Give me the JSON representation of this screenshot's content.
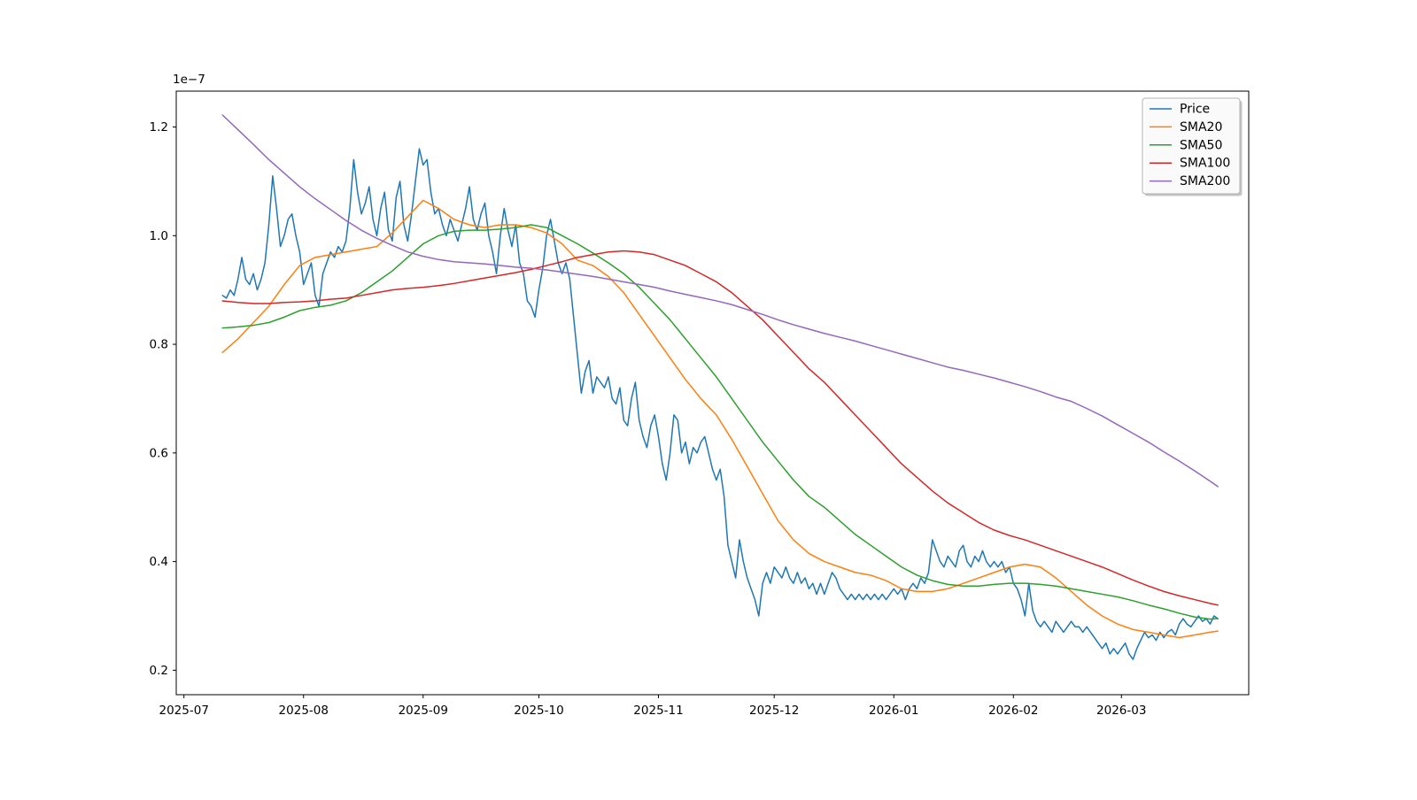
{
  "figure": {
    "background": "#ffffff",
    "offset_label": "1e−7"
  },
  "chart_data": {
    "type": "line",
    "title": "",
    "xlabel": "",
    "ylabel": "",
    "y_multiplier_label": "1e−7",
    "x_unit": "days since 2025-07-01",
    "xlim": [
      -2,
      276
    ],
    "ylim": [
      0.155,
      1.266
    ],
    "grid": false,
    "x_ticks": [
      {
        "pos": 0,
        "label": "2025-07"
      },
      {
        "pos": 31,
        "label": "2025-08"
      },
      {
        "pos": 62,
        "label": "2025-09"
      },
      {
        "pos": 92,
        "label": "2025-10"
      },
      {
        "pos": 123,
        "label": "2025-11"
      },
      {
        "pos": 153,
        "label": "2025-12"
      },
      {
        "pos": 184,
        "label": "2026-01"
      },
      {
        "pos": 215,
        "label": "2026-02"
      },
      {
        "pos": 243,
        "label": "2026-03"
      }
    ],
    "y_ticks": [
      {
        "pos": 0.2,
        "label": "0.2"
      },
      {
        "pos": 0.4,
        "label": "0.4"
      },
      {
        "pos": 0.6,
        "label": "0.6"
      },
      {
        "pos": 0.8,
        "label": "0.8"
      },
      {
        "pos": 1.0,
        "label": "1.0"
      },
      {
        "pos": 1.2,
        "label": "1.2"
      }
    ],
    "legend": {
      "position": "upper right",
      "entries": [
        {
          "label": "Price",
          "color": "#1f77b4"
        },
        {
          "label": "SMA20",
          "color": "#ff7f0e"
        },
        {
          "label": "SMA50",
          "color": "#2ca02c"
        },
        {
          "label": "SMA100",
          "color": "#d62728"
        },
        {
          "label": "SMA200",
          "color": "#9467bd"
        }
      ]
    },
    "sma_x": [
      10,
      14,
      18,
      22,
      26,
      30,
      34,
      38,
      42,
      46,
      50,
      54,
      58,
      62,
      66,
      70,
      74,
      78,
      82,
      86,
      90,
      94,
      98,
      102,
      106,
      110,
      114,
      118,
      122,
      126,
      130,
      134,
      138,
      142,
      146,
      150,
      154,
      158,
      162,
      166,
      170,
      174,
      178,
      182,
      186,
      190,
      194,
      198,
      202,
      206,
      210,
      214,
      218,
      222,
      226,
      230,
      234,
      238,
      242,
      246,
      250,
      254,
      258,
      262,
      266,
      268
    ],
    "series": [
      {
        "name": "Price",
        "color": "#1f77b4",
        "x_start": 10,
        "x_step": 1,
        "y": [
          0.89,
          0.885,
          0.9,
          0.89,
          0.92,
          0.96,
          0.92,
          0.91,
          0.93,
          0.9,
          0.92,
          0.95,
          1.02,
          1.11,
          1.05,
          0.98,
          1.0,
          1.03,
          1.04,
          1.0,
          0.97,
          0.91,
          0.93,
          0.95,
          0.89,
          0.87,
          0.93,
          0.95,
          0.97,
          0.96,
          0.98,
          0.97,
          0.99,
          1.05,
          1.14,
          1.08,
          1.04,
          1.06,
          1.09,
          1.03,
          1.0,
          1.05,
          1.08,
          1.01,
          0.99,
          1.07,
          1.1,
          1.02,
          0.99,
          1.04,
          1.1,
          1.16,
          1.13,
          1.14,
          1.08,
          1.04,
          1.05,
          1.02,
          1.0,
          1.03,
          1.01,
          0.99,
          1.02,
          1.05,
          1.09,
          1.03,
          1.01,
          1.04,
          1.06,
          1.0,
          0.97,
          0.93,
          1.0,
          1.05,
          1.01,
          0.98,
          1.02,
          0.95,
          0.93,
          0.88,
          0.87,
          0.85,
          0.9,
          0.94,
          1.0,
          1.03,
          0.99,
          0.95,
          0.93,
          0.95,
          0.92,
          0.85,
          0.78,
          0.71,
          0.75,
          0.77,
          0.71,
          0.74,
          0.73,
          0.72,
          0.74,
          0.7,
          0.69,
          0.72,
          0.66,
          0.65,
          0.7,
          0.73,
          0.66,
          0.63,
          0.61,
          0.65,
          0.67,
          0.63,
          0.58,
          0.55,
          0.6,
          0.67,
          0.66,
          0.6,
          0.62,
          0.58,
          0.61,
          0.6,
          0.62,
          0.63,
          0.6,
          0.57,
          0.55,
          0.57,
          0.52,
          0.43,
          0.4,
          0.37,
          0.44,
          0.4,
          0.37,
          0.35,
          0.33,
          0.3,
          0.36,
          0.38,
          0.36,
          0.39,
          0.38,
          0.37,
          0.39,
          0.37,
          0.36,
          0.38,
          0.36,
          0.37,
          0.35,
          0.36,
          0.34,
          0.36,
          0.34,
          0.36,
          0.38,
          0.37,
          0.35,
          0.34,
          0.33,
          0.34,
          0.33,
          0.34,
          0.33,
          0.34,
          0.33,
          0.34,
          0.33,
          0.34,
          0.33,
          0.34,
          0.35,
          0.34,
          0.35,
          0.33,
          0.35,
          0.36,
          0.35,
          0.37,
          0.36,
          0.38,
          0.44,
          0.42,
          0.4,
          0.39,
          0.41,
          0.4,
          0.39,
          0.42,
          0.43,
          0.4,
          0.39,
          0.41,
          0.4,
          0.42,
          0.4,
          0.39,
          0.4,
          0.39,
          0.4,
          0.38,
          0.39,
          0.36,
          0.35,
          0.33,
          0.3,
          0.36,
          0.31,
          0.29,
          0.28,
          0.29,
          0.28,
          0.27,
          0.29,
          0.28,
          0.27,
          0.28,
          0.29,
          0.28,
          0.28,
          0.27,
          0.28,
          0.27,
          0.26,
          0.25,
          0.24,
          0.25,
          0.23,
          0.24,
          0.23,
          0.24,
          0.25,
          0.23,
          0.22,
          0.24,
          0.255,
          0.27,
          0.26,
          0.265,
          0.255,
          0.27,
          0.26,
          0.27,
          0.275,
          0.265,
          0.285,
          0.295,
          0.285,
          0.28,
          0.29,
          0.3,
          0.29,
          0.295,
          0.285,
          0.3,
          0.295
        ]
      },
      {
        "name": "SMA20",
        "color": "#ff7f0e",
        "use_sma_x": true,
        "y": [
          0.785,
          0.81,
          0.84,
          0.87,
          0.91,
          0.945,
          0.96,
          0.965,
          0.97,
          0.975,
          0.98,
          1.005,
          1.035,
          1.065,
          1.05,
          1.03,
          1.02,
          1.015,
          1.02,
          1.02,
          1.015,
          1.005,
          0.985,
          0.955,
          0.945,
          0.925,
          0.895,
          0.855,
          0.815,
          0.775,
          0.735,
          0.7,
          0.67,
          0.625,
          0.575,
          0.525,
          0.475,
          0.44,
          0.415,
          0.4,
          0.39,
          0.38,
          0.375,
          0.365,
          0.35,
          0.345,
          0.345,
          0.35,
          0.36,
          0.37,
          0.38,
          0.39,
          0.395,
          0.39,
          0.37,
          0.345,
          0.32,
          0.3,
          0.285,
          0.275,
          0.27,
          0.265,
          0.26,
          0.265,
          0.27,
          0.272
        ]
      },
      {
        "name": "SMA50",
        "color": "#2ca02c",
        "use_sma_x": true,
        "y": [
          0.83,
          0.832,
          0.835,
          0.84,
          0.85,
          0.862,
          0.868,
          0.872,
          0.88,
          0.895,
          0.915,
          0.935,
          0.96,
          0.985,
          1.0,
          1.008,
          1.01,
          1.01,
          1.012,
          1.015,
          1.02,
          1.015,
          1.0,
          0.985,
          0.968,
          0.95,
          0.93,
          0.905,
          0.875,
          0.845,
          0.81,
          0.775,
          0.74,
          0.7,
          0.66,
          0.62,
          0.585,
          0.55,
          0.52,
          0.5,
          0.475,
          0.45,
          0.43,
          0.41,
          0.39,
          0.375,
          0.365,
          0.358,
          0.355,
          0.355,
          0.358,
          0.36,
          0.36,
          0.358,
          0.355,
          0.35,
          0.345,
          0.34,
          0.335,
          0.328,
          0.32,
          0.313,
          0.305,
          0.298,
          0.294,
          0.295
        ]
      },
      {
        "name": "SMA100",
        "color": "#d62728",
        "use_sma_x": true,
        "y": [
          0.88,
          0.877,
          0.875,
          0.875,
          0.877,
          0.878,
          0.88,
          0.883,
          0.885,
          0.89,
          0.895,
          0.9,
          0.903,
          0.905,
          0.908,
          0.912,
          0.917,
          0.922,
          0.927,
          0.932,
          0.938,
          0.945,
          0.952,
          0.96,
          0.965,
          0.97,
          0.972,
          0.97,
          0.965,
          0.955,
          0.945,
          0.93,
          0.915,
          0.895,
          0.87,
          0.845,
          0.815,
          0.785,
          0.755,
          0.73,
          0.7,
          0.67,
          0.64,
          0.61,
          0.58,
          0.555,
          0.53,
          0.508,
          0.49,
          0.472,
          0.458,
          0.448,
          0.44,
          0.43,
          0.42,
          0.41,
          0.4,
          0.39,
          0.378,
          0.366,
          0.355,
          0.345,
          0.337,
          0.33,
          0.323,
          0.32
        ]
      },
      {
        "name": "SMA200",
        "color": "#9467bd",
        "use_sma_x": true,
        "y": [
          1.222,
          1.195,
          1.168,
          1.14,
          1.115,
          1.09,
          1.068,
          1.048,
          1.028,
          1.01,
          0.995,
          0.982,
          0.97,
          0.962,
          0.956,
          0.952,
          0.95,
          0.948,
          0.945,
          0.942,
          0.94,
          0.937,
          0.933,
          0.929,
          0.925,
          0.92,
          0.915,
          0.91,
          0.905,
          0.898,
          0.892,
          0.886,
          0.88,
          0.873,
          0.864,
          0.855,
          0.845,
          0.836,
          0.828,
          0.82,
          0.813,
          0.806,
          0.798,
          0.79,
          0.782,
          0.774,
          0.766,
          0.758,
          0.752,
          0.745,
          0.738,
          0.73,
          0.722,
          0.713,
          0.703,
          0.695,
          0.682,
          0.668,
          0.652,
          0.636,
          0.62,
          0.602,
          0.585,
          0.567,
          0.548,
          0.538
        ]
      }
    ]
  }
}
